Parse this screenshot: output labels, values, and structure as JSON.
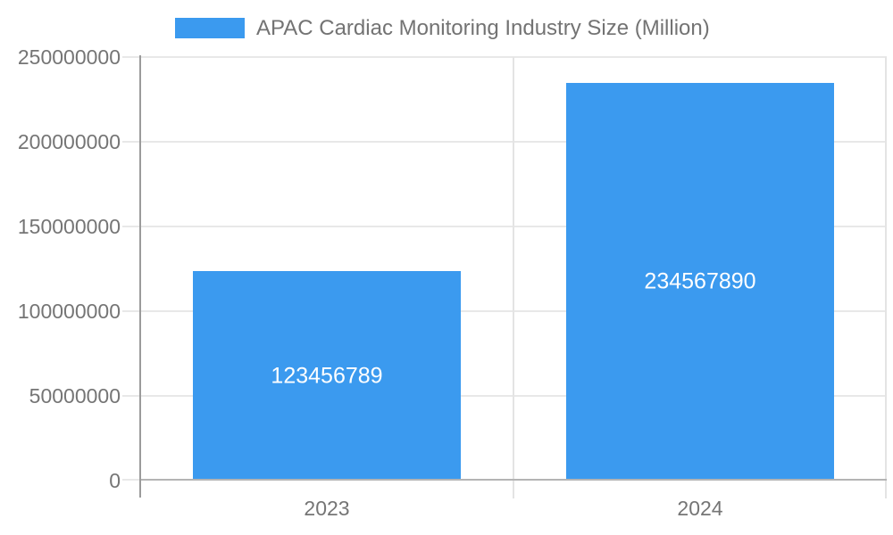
{
  "legend": {
    "label": "APAC Cardiac Monitoring Industry Size (Million)"
  },
  "chart_data": {
    "type": "bar",
    "title": "APAC Cardiac Monitoring Industry Size (Million)",
    "categories": [
      "2023",
      "2024"
    ],
    "series": [
      {
        "name": "APAC Cardiac Monitoring Industry Size (Million)",
        "values": [
          123456789,
          234567890
        ]
      }
    ],
    "bar_value_labels": [
      "123456789",
      "234567890"
    ],
    "xlabel": "",
    "ylabel": "",
    "ylim": [
      0,
      250000000
    ],
    "yticks": [
      0,
      50000000,
      100000000,
      150000000,
      200000000,
      250000000
    ],
    "ytick_labels": [
      "0",
      "50000000",
      "100000000",
      "150000000",
      "200000000",
      "250000000"
    ],
    "grid": true,
    "legend_position": "top"
  },
  "colors": {
    "bar": "#3B9AEF",
    "bar_label_text": "#FFFFFF",
    "axis_line": "#9B9B9B",
    "baseline": "#B4B4B4",
    "gridline": "#E8E8E8",
    "divider": "#E4E4E4",
    "tick_text": "#757575",
    "legend_text": "#737373",
    "background": "#FFFFFF"
  }
}
